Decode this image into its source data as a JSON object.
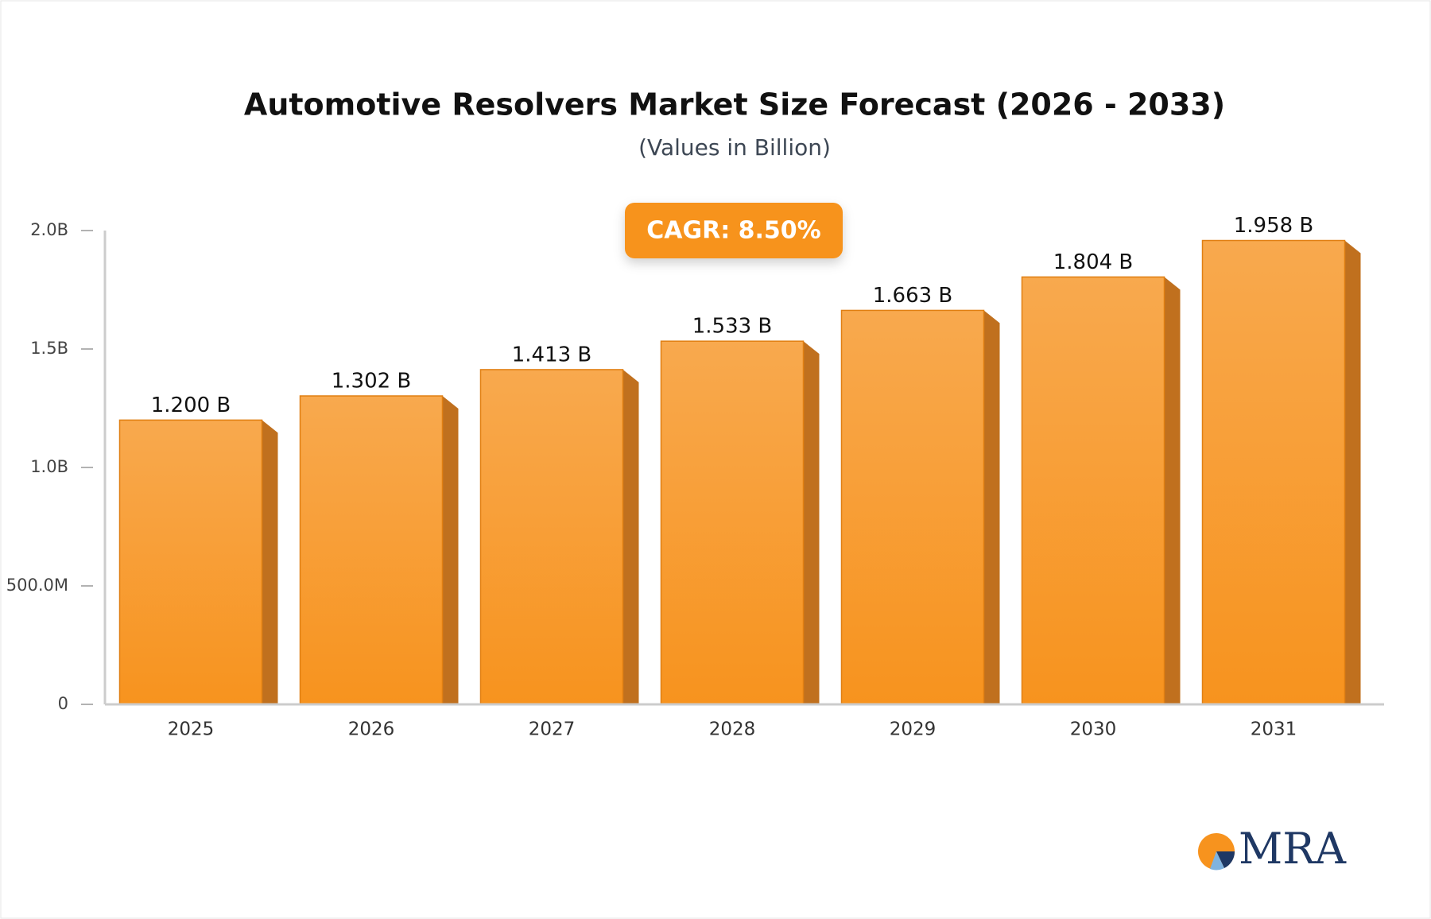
{
  "chart_data": {
    "type": "bar",
    "title": "Automotive Resolvers Market Size Forecast (2026 - 2033)",
    "subtitle": "(Values in Billion)",
    "annotation": "CAGR: 8.50%",
    "logo_text": "MRA",
    "categories": [
      "2025",
      "2026",
      "2027",
      "2028",
      "2029",
      "2030",
      "2031"
    ],
    "values": [
      1.2,
      1.302,
      1.413,
      1.533,
      1.663,
      1.804,
      1.958
    ],
    "value_labels": [
      "1.200 B",
      "1.302 B",
      "1.413 B",
      "1.533 B",
      "1.663 B",
      "1.804 B",
      "1.958 B"
    ],
    "color": "#f7931e",
    "ylim": [
      0,
      2
    ],
    "yticks": [
      0,
      {
        "value": 0.5,
        "label": "500.0M"
      },
      {
        "value": 1,
        "label": "1.0B"
      },
      {
        "value": 1.5,
        "label": "1.5B"
      },
      {
        "value": 2,
        "label": "2.0B"
      }
    ]
  }
}
